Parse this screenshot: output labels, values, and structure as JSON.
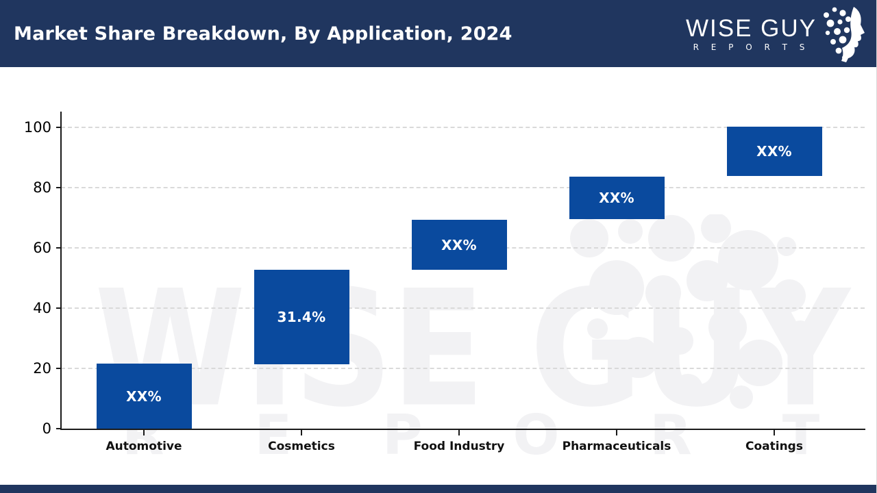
{
  "header": {
    "title": "Market Share Breakdown, By Application, 2024",
    "logo": {
      "wordmark": "WISE GUY",
      "subtext": "R E P O R T S"
    }
  },
  "watermark": {
    "wordmark": "WISE GUY",
    "subtext": "R E P O R T S"
  },
  "colors": {
    "header_bg": "#20365f",
    "bar": "#0a4a9e",
    "bar_label": "#ffffff",
    "gridline": "#d9d9d9",
    "axis": "#1a1a1a",
    "watermark": "#f2f2f4"
  },
  "chart_data": {
    "type": "bar",
    "variant": "waterfall-floating-bars",
    "title": "Market Share Breakdown, By Application, 2024",
    "categories": [
      "Automotive",
      "Cosmetics",
      "Food Industry",
      "Pharmaceuticals",
      "Coatings"
    ],
    "bars": [
      {
        "category": "Automotive",
        "start": 0,
        "end": 21.5,
        "label": "XX%"
      },
      {
        "category": "Cosmetics",
        "start": 21.4,
        "end": 52.8,
        "label": "31.4%",
        "value": 31.4
      },
      {
        "category": "Food Industry",
        "start": 52.7,
        "end": 69.3,
        "label": "XX%"
      },
      {
        "category": "Pharmaceuticals",
        "start": 69.5,
        "end": 83.6,
        "label": "XX%"
      },
      {
        "category": "Coatings",
        "start": 83.9,
        "end": 100.2,
        "label": "XX%"
      }
    ],
    "xlabel": "",
    "ylabel": "",
    "yticks": [
      0,
      20,
      40,
      60,
      80,
      100
    ],
    "ylim": [
      0,
      105
    ],
    "grid": "horizontal-dashed",
    "legend": null
  }
}
